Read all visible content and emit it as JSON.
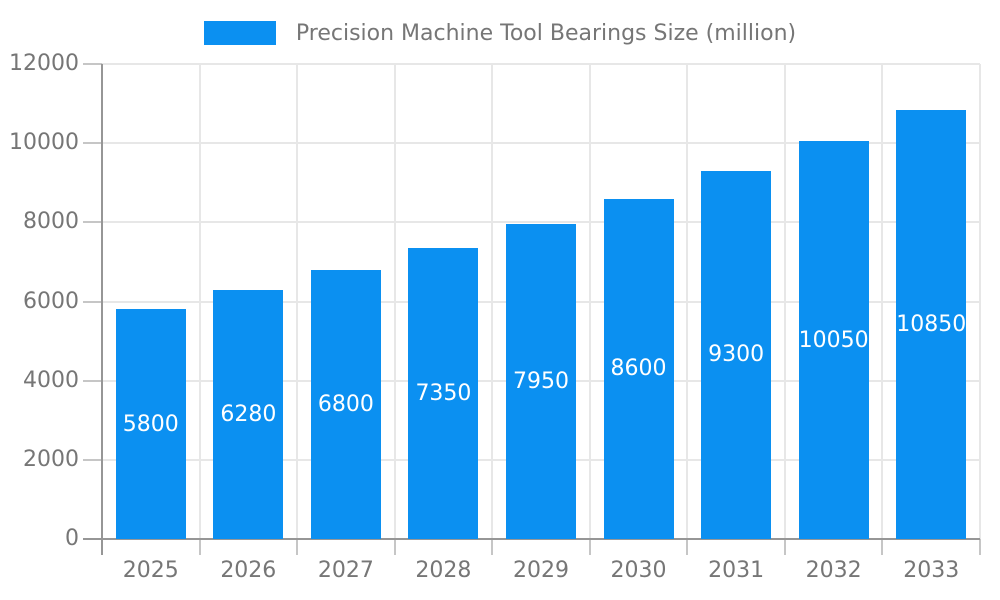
{
  "chart_data": {
    "type": "bar",
    "title": "Precision Machine Tool Bearings Size (million)",
    "categories": [
      "2025",
      "2026",
      "2027",
      "2028",
      "2029",
      "2030",
      "2031",
      "2032",
      "2033"
    ],
    "values": [
      5800,
      6280,
      6800,
      7350,
      7950,
      8600,
      9300,
      10050,
      10850
    ],
    "value_labels": [
      "5800",
      "6280",
      "6800",
      "7350",
      "7950",
      "8600",
      "9300",
      "10050",
      "10850"
    ],
    "xlabel": "",
    "ylabel": "",
    "ylim": [
      0,
      12000
    ],
    "yticks": [
      0,
      2000,
      4000,
      6000,
      8000,
      10000,
      12000
    ],
    "grid": true,
    "legend_position": "top",
    "colors": {
      "bar": "#0b90f1",
      "bar_label": "#ffffff",
      "axis_text": "#767676",
      "axis_line": "#969696",
      "gridline": "#e7e7e7",
      "tick": "#c6c6c6",
      "background": "#ffffff"
    }
  }
}
